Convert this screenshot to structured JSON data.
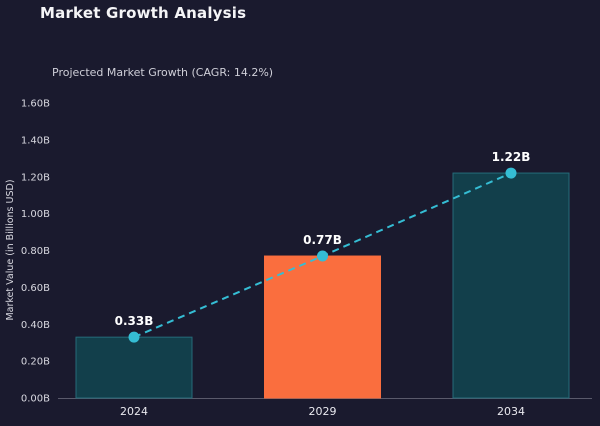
{
  "page": {
    "title": "Market Growth Analysis"
  },
  "colors": {
    "background": "#1a1a2e",
    "title_text": "#f5f5f7",
    "muted_text": "#cfcfd8",
    "tick_text": "#d8d8e0",
    "axis_line": "#8f8f9e",
    "value_label_text": "#ffffff"
  },
  "chart_data": {
    "type": "bar",
    "title": "Projected Market Growth (CAGR: 14.2%)",
    "categories": [
      "2024",
      "2029",
      "2034"
    ],
    "values": [
      0.33,
      0.77,
      1.22
    ],
    "value_labels": [
      "0.33B",
      "0.77B",
      "1.22B"
    ],
    "bar_colors": [
      "#123f4b",
      "#fa6e3e",
      "#123f4b"
    ],
    "bar_strokes": [
      "#256b7a",
      "#fa6e3e",
      "#256b7a"
    ],
    "trend_line_color": "#35bdd4",
    "trend_marker_color": "#35bdd4",
    "trend_style": "dashed line with circular markers connecting bar tops",
    "xlabel": "",
    "ylabel": "Market Value (in Billions USD)",
    "ylim": [
      0,
      1.6
    ],
    "yticks": [
      "0.00B",
      "0.20B",
      "0.40B",
      "0.60B",
      "0.80B",
      "1.00B",
      "1.20B",
      "1.40B",
      "1.60B"
    ],
    "grid": false,
    "legend": "none"
  }
}
